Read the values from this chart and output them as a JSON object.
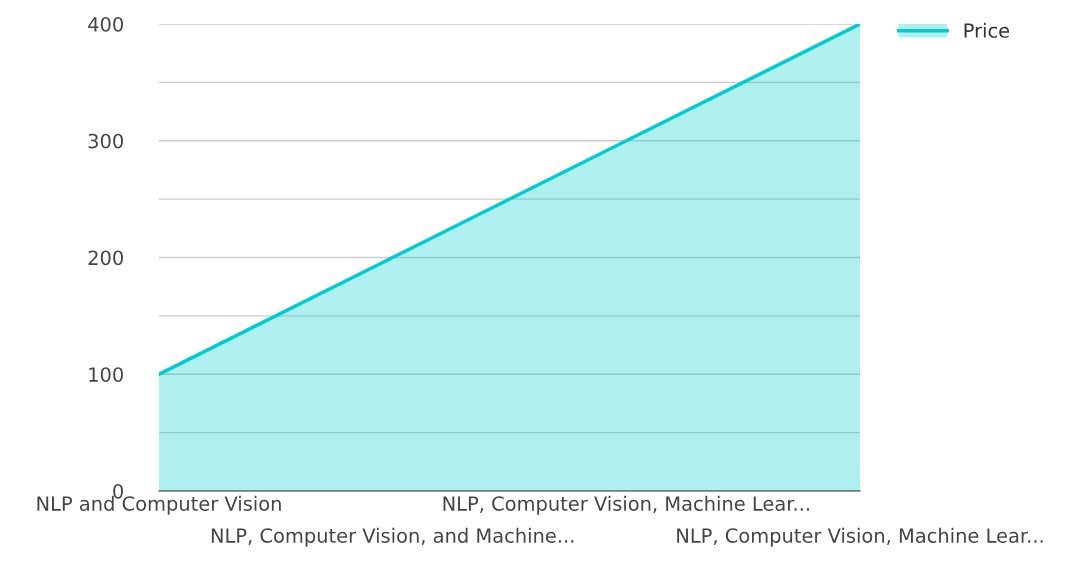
{
  "chart_data": {
    "type": "area",
    "categories": [
      "NLP and Computer Vision",
      "NLP, Computer Vision, and Machine...",
      "NLP, Computer Vision, Machine Lear...",
      "NLP, Computer Vision, Machine Lear..."
    ],
    "series": [
      {
        "name": "Price",
        "color": "#00cccc",
        "values": [
          100,
          200,
          300,
          400
        ]
      }
    ],
    "ylim": [
      0,
      400
    ],
    "yticks": [
      0,
      {
        "value": 50,
        "label": null
      },
      100,
      {
        "value": 150,
        "label": null
      },
      200,
      {
        "value": 250,
        "label": null
      },
      300,
      {
        "value": 350,
        "label": null
      },
      400
    ],
    "grid": "y",
    "legend": "top right"
  }
}
